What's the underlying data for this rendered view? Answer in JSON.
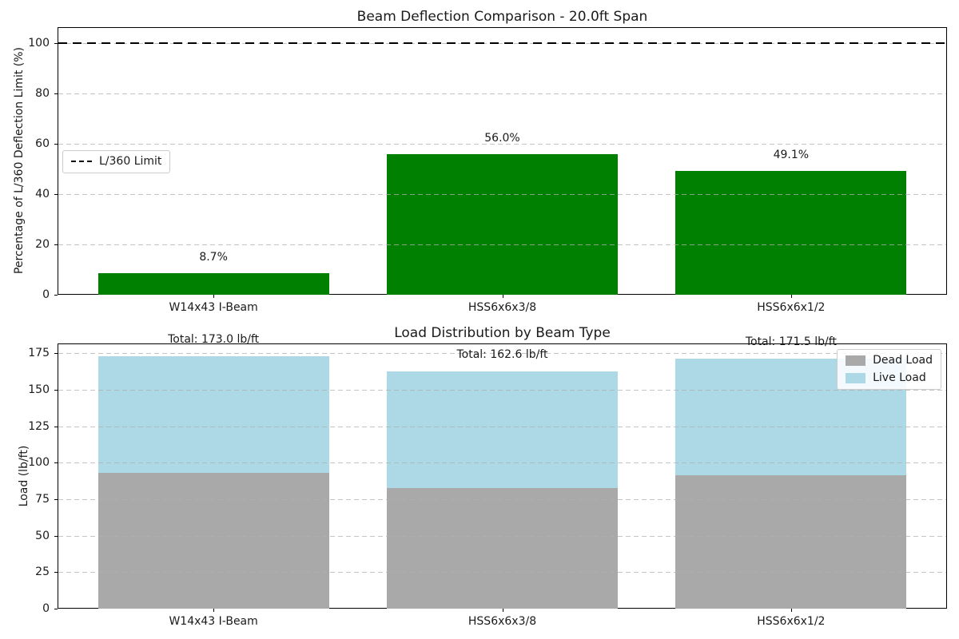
{
  "chart_data": [
    {
      "type": "bar",
      "title": "Beam Deflection Comparison - 20.0ft Span",
      "ylabel": "Percentage of L/360 Deflection Limit (%)",
      "xlabel": "",
      "categories": [
        "W14x43 I-Beam",
        "HSS6x6x3/8",
        "HSS6x6x1/2"
      ],
      "values": [
        8.7,
        56.0,
        49.1
      ],
      "bar_labels": [
        "8.7%",
        "56.0%",
        "49.1%"
      ],
      "bar_color": "#008000",
      "ylim": [
        0,
        106.3
      ],
      "yticks": [
        0,
        20,
        40,
        60,
        80,
        100
      ],
      "grid": true,
      "grid_style": "dashed",
      "reference_line": {
        "value": 100,
        "color": "#000000",
        "style": "dashed",
        "label": "L/360 Limit"
      },
      "legend": {
        "position": "center-left",
        "entries": [
          {
            "label": "L/360 Limit",
            "marker": "dashed-line",
            "color": "#000000"
          }
        ]
      }
    },
    {
      "type": "stacked-bar",
      "title": "Load Distribution by Beam Type",
      "ylabel": "Load (lb/ft)",
      "xlabel": "",
      "categories": [
        "W14x43 I-Beam",
        "HSS6x6x3/8",
        "HSS6x6x1/2"
      ],
      "series": [
        {
          "name": "Dead Load",
          "color": "#a9a9a9",
          "values": [
            93.0,
            82.6,
            91.5
          ]
        },
        {
          "name": "Live Load",
          "color": "#add8e6",
          "values": [
            80.0,
            80.0,
            80.0
          ]
        }
      ],
      "totals": [
        173.0,
        162.6,
        171.5
      ],
      "total_labels": [
        "Total: 173.0 lb/ft",
        "Total: 162.6 lb/ft",
        "Total: 171.5 lb/ft"
      ],
      "ylim": [
        0,
        181.65
      ],
      "yticks": [
        0,
        25,
        50,
        75,
        100,
        125,
        150,
        175
      ],
      "grid": true,
      "grid_style": "dashed",
      "legend": {
        "position": "top-right",
        "entries": [
          {
            "label": "Dead Load",
            "marker": "patch",
            "color": "#a9a9a9"
          },
          {
            "label": "Live Load",
            "marker": "patch",
            "color": "#add8e6"
          }
        ]
      }
    }
  ]
}
